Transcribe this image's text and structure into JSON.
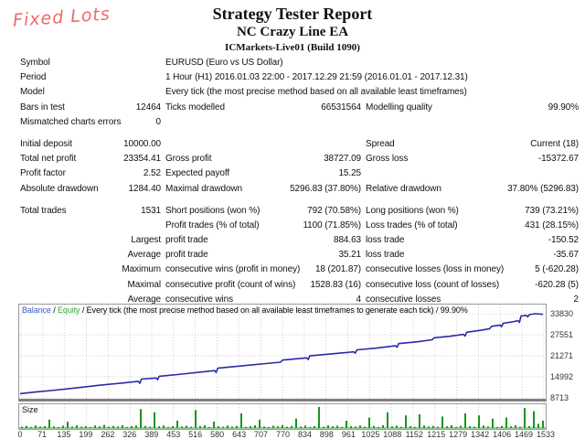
{
  "annotation": {
    "text": "Fixed Lots",
    "color": "#ee6a6a"
  },
  "header": {
    "title": "Strategy Tester Report",
    "subtitle": "NC Crazy Line EA",
    "server": "ICMarkets-Live01 (Build 1090)"
  },
  "report": {
    "rows": [
      {
        "gap": false,
        "cells": [
          "Symbol",
          "",
          "EURUSD (Euro vs US Dollar)",
          "",
          "",
          ""
        ]
      },
      {
        "gap": false,
        "cells": [
          "Period",
          "",
          "1 Hour (H1) 2016.01.03 22:00 - 2017.12.29 21:59 (2016.01.01 - 2017.12.31)",
          "",
          "",
          ""
        ]
      },
      {
        "gap": false,
        "cells": [
          "Model",
          "",
          "Every tick (the most precise method based on all available least timeframes)",
          "",
          "",
          ""
        ]
      },
      {
        "gap": false,
        "cells": [
          "Bars in test",
          "12464",
          "Ticks modelled",
          "66531564",
          "Modelling quality",
          "99.90%"
        ]
      },
      {
        "gap": false,
        "cells": [
          "Mismatched charts errors",
          "0",
          "",
          "",
          "",
          ""
        ]
      },
      {
        "gap": true,
        "cells": [
          "Initial deposit",
          "10000.00",
          "",
          "",
          "Spread",
          "Current (18)"
        ]
      },
      {
        "gap": false,
        "cells": [
          "Total net profit",
          "23354.41",
          "Gross profit",
          "38727.09",
          "Gross loss",
          "-15372.67"
        ]
      },
      {
        "gap": false,
        "cells": [
          "Profit factor",
          "2.52",
          "Expected payoff",
          "15.25",
          "",
          ""
        ]
      },
      {
        "gap": false,
        "cells": [
          "Absolute drawdown",
          "1284.40",
          "Maximal drawdown",
          "5296.83 (37.80%)",
          "Relative drawdown",
          "37.80% (5296.83)"
        ]
      },
      {
        "gap": true,
        "cells": [
          "Total trades",
          "1531",
          "Short positions (won %)",
          "792 (70.58%)",
          "Long positions (won %)",
          "739 (73.21%)"
        ]
      },
      {
        "gap": false,
        "cells": [
          "",
          "",
          "Profit trades (% of total)",
          "1100 (71.85%)",
          "Loss trades (% of total)",
          "431 (28.15%)"
        ]
      },
      {
        "gap": false,
        "cells": [
          "",
          "Largest",
          "profit trade",
          "884.63",
          "loss trade",
          "-150.52"
        ]
      },
      {
        "gap": false,
        "cells": [
          "",
          "Average",
          "profit trade",
          "35.21",
          "loss trade",
          "-35.67"
        ]
      },
      {
        "gap": false,
        "cells": [
          "",
          "Maximum",
          "consecutive wins (profit in money)",
          "18 (201.87)",
          "consecutive losses (loss in money)",
          "5 (-620.28)"
        ]
      },
      {
        "gap": false,
        "cells": [
          "",
          "Maximal",
          "consecutive profit (count of wins)",
          "1528.83 (16)",
          "consecutive loss (count of losses)",
          "-620.28 (5)"
        ]
      },
      {
        "gap": false,
        "cells": [
          "",
          "Average",
          "consecutive wins",
          "4",
          "consecutive losses",
          "2"
        ]
      }
    ]
  },
  "chart_data": [
    {
      "type": "line",
      "name": "balance-equity-curve",
      "header_parts": [
        {
          "text": "Balance",
          "color": "#3c5acd"
        },
        {
          "text": " / ",
          "color": "#000000"
        },
        {
          "text": "Equity",
          "color": "#3aa33a"
        },
        {
          "text": " / Every tick (the most precise method based on all available least timeframes to generate each tick) / 99.90%",
          "color": "#000000"
        }
      ],
      "line_color": "#2b2ba8",
      "grid_color": "#d0d0d0",
      "ylim": [
        8713,
        33830
      ],
      "y_ticks": [
        33830,
        27551,
        21271,
        14992,
        8713
      ],
      "x_ticks": [
        "0",
        "71",
        "135",
        "199",
        "262",
        "326",
        "389",
        "453",
        "516",
        "580",
        "643",
        "707",
        "770",
        "834",
        "898",
        "961",
        "1025",
        "1088",
        "1152",
        "1215",
        "1279",
        "1342",
        "1406",
        "1469",
        "1533"
      ],
      "series": [
        {
          "name": "Balance",
          "points": [
            [
              0,
              9980
            ],
            [
              0.03,
              10450
            ],
            [
              0.06,
              10900
            ],
            [
              0.09,
              11400
            ],
            [
              0.12,
              11900
            ],
            [
              0.15,
              12450
            ],
            [
              0.17,
              12750
            ],
            [
              0.2,
              13200
            ],
            [
              0.226,
              13650
            ],
            [
              0.229,
              13050
            ],
            [
              0.232,
              14300
            ],
            [
              0.26,
              14650
            ],
            [
              0.263,
              14150
            ],
            [
              0.266,
              15150
            ],
            [
              0.31,
              15800
            ],
            [
              0.372,
              16850
            ],
            [
              0.375,
              16300
            ],
            [
              0.378,
              17550
            ],
            [
              0.43,
              18350
            ],
            [
              0.47,
              18950
            ],
            [
              0.498,
              19350
            ],
            [
              0.502,
              19980
            ],
            [
              0.548,
              20650
            ],
            [
              0.551,
              20150
            ],
            [
              0.554,
              21250
            ],
            [
              0.6,
              21900
            ],
            [
              0.638,
              22450
            ],
            [
              0.641,
              22050
            ],
            [
              0.644,
              23050
            ],
            [
              0.68,
              23550
            ],
            [
              0.718,
              24250
            ],
            [
              0.721,
              23800
            ],
            [
              0.724,
              24900
            ],
            [
              0.76,
              25450
            ],
            [
              0.788,
              26050
            ],
            [
              0.792,
              26650
            ],
            [
              0.82,
              27050
            ],
            [
              0.848,
              27650
            ],
            [
              0.851,
              27150
            ],
            [
              0.854,
              28300
            ],
            [
              0.88,
              28850
            ],
            [
              0.898,
              29350
            ],
            [
              0.902,
              30050
            ],
            [
              0.918,
              30450
            ],
            [
              0.921,
              29950
            ],
            [
              0.924,
              30950
            ],
            [
              0.94,
              31350
            ],
            [
              0.952,
              31750
            ],
            [
              0.955,
              31250
            ],
            [
              0.958,
              33150
            ],
            [
              0.968,
              33350
            ],
            [
              0.971,
              32900
            ],
            [
              0.974,
              33550
            ],
            [
              0.985,
              33830
            ],
            [
              1,
              33650
            ]
          ]
        }
      ]
    },
    {
      "type": "bar",
      "name": "trade-size",
      "title": "Size",
      "bar_color": "#199419",
      "baseline_color": "#2e9e2e",
      "values": [
        6,
        10,
        5,
        12,
        7,
        9,
        40,
        8,
        5,
        11,
        30,
        7,
        13,
        6,
        9,
        5,
        12,
        8,
        15,
        6,
        10,
        7,
        13,
        5,
        9,
        12,
        90,
        10,
        6,
        75,
        8,
        12,
        5,
        9,
        35,
        7,
        11,
        6,
        85,
        9,
        13,
        5,
        30,
        8,
        6,
        12,
        7,
        10,
        70,
        6,
        9,
        13,
        40,
        7,
        5,
        11,
        8,
        14,
        6,
        10,
        45,
        7,
        12,
        5,
        9,
        100,
        6,
        13,
        8,
        11,
        5,
        35,
        9,
        7,
        12,
        6,
        50,
        10,
        5,
        13,
        75,
        8,
        11,
        6,
        60,
        9,
        5,
        65,
        12,
        7,
        10,
        6,
        55,
        8,
        13,
        5,
        11,
        70,
        9,
        6,
        60,
        12,
        7,
        45,
        5,
        10,
        50,
        8,
        13,
        6,
        95,
        9,
        80,
        20,
        35
      ]
    }
  ]
}
